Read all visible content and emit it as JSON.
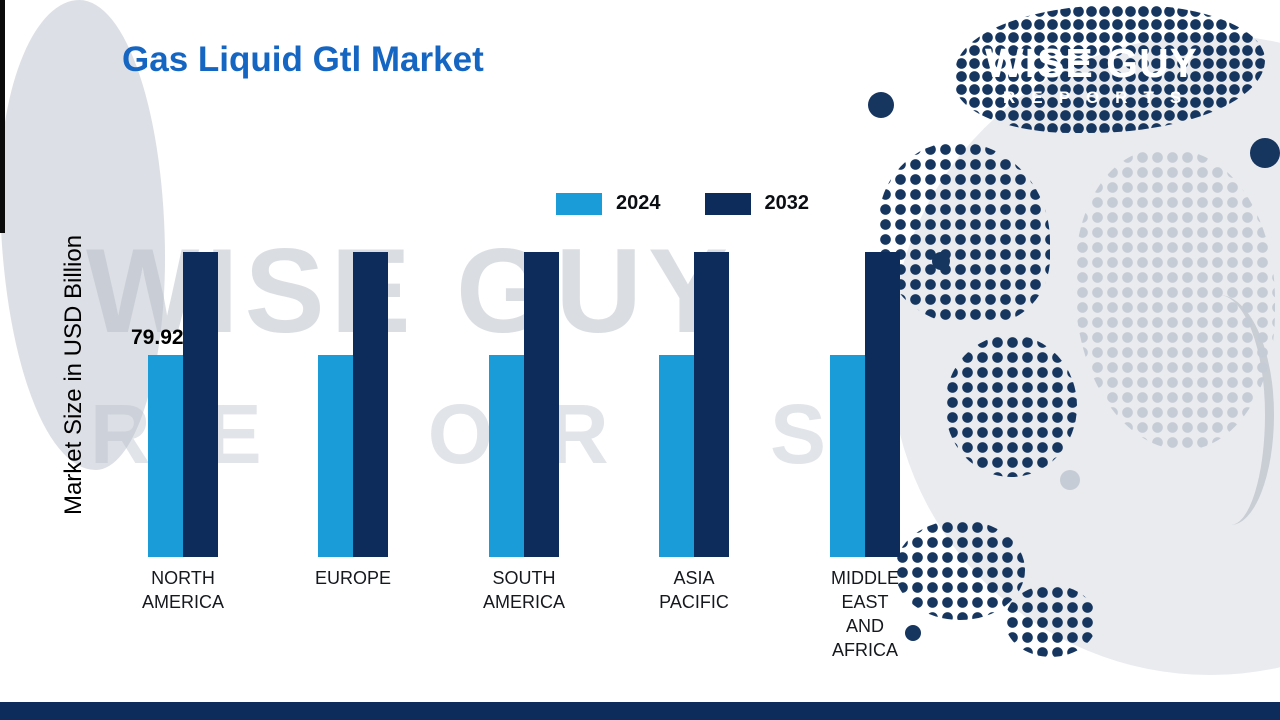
{
  "page": {
    "title": "Gas Liquid Gtl Market"
  },
  "logo": {
    "line1": "WISE GUY",
    "line2": "REPORTS"
  },
  "watermark": {
    "line1": "WISE GUY",
    "line2": "REPORTS"
  },
  "colors": {
    "accent_blue": "#1566c2",
    "bar_2024": "#1a9cd8",
    "bar_2032": "#0d2c5b",
    "footer": "#0d2c5b",
    "watermark_gray": "#b9c0ca"
  },
  "chart_data": {
    "type": "bar",
    "title": "Gas Liquid Gtl Market",
    "xlabel": "",
    "ylabel": "Market Size in USD Billion",
    "categories": [
      "North America",
      "Europe",
      "South America",
      "Asia Pacific",
      "Middle East and Africa"
    ],
    "tick_labels": [
      "NORTH\nAMERICA",
      "EUROPE",
      "SOUTH\nAMERICA",
      "ASIA\nPACIFIC",
      "MIDDLE\nEAST\nAND\nAFRICA"
    ],
    "series": [
      {
        "name": "2024",
        "color": "#1a9cd8",
        "values": [
          79.92,
          79.92,
          79.92,
          79.92,
          79.92
        ]
      },
      {
        "name": "2032",
        "color": "#0d2c5b",
        "values": [
          121.1,
          121.1,
          121.1,
          121.1,
          121.1
        ]
      }
    ],
    "bar_labels": [
      {
        "series": 0,
        "category": 0,
        "text": "79.92"
      }
    ],
    "ylim": [
      0,
      130
    ],
    "grid": false,
    "legend_position": "top-center",
    "note": "Only the 79.92 value is labeled on-chart; 2032 bar values estimated from bar heights."
  }
}
